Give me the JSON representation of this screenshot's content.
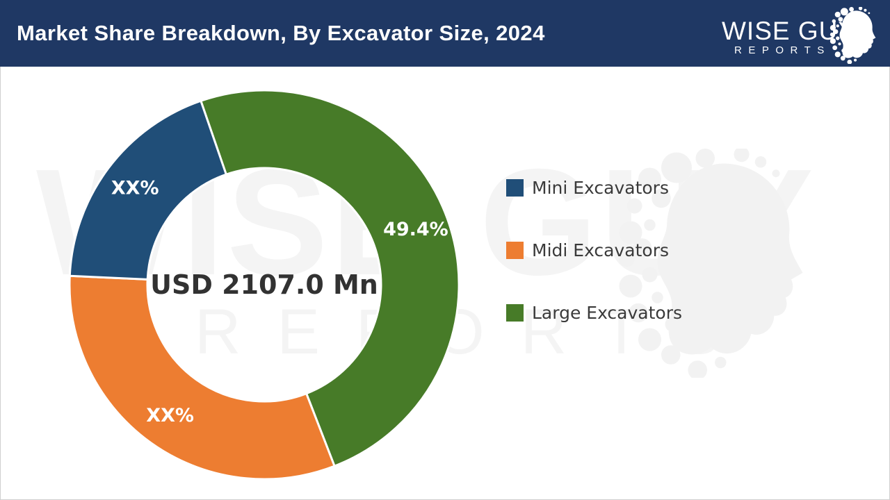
{
  "header": {
    "title": "Market Share Breakdown, By Excavator Size, 2024",
    "bg_color": "#1f3864",
    "logo": {
      "name": "WISE GUY",
      "sub": "REPORTS"
    }
  },
  "watermark": {
    "line1": "WISE GUY",
    "line2": "REPORTS"
  },
  "chart_data": {
    "type": "pie",
    "subtype": "donut",
    "title": "Market Share Breakdown, By Excavator Size, 2024",
    "center_label": "USD 2107.0 Mn",
    "rotation_deg": -19,
    "slices": [
      {
        "name": "Large Excavators",
        "label": "49.4%",
        "value_pct": 49.4,
        "color": "#477b28"
      },
      {
        "name": "Midi Excavators",
        "label": "XX%",
        "value_pct": 31.6,
        "color": "#ed7d31"
      },
      {
        "name": "Mini Excavators",
        "label": "XX%",
        "value_pct": 19.0,
        "color": "#204e78"
      }
    ],
    "legend": [
      {
        "label": "Mini Excavators",
        "color": "#204e78"
      },
      {
        "label": "Midi Excavators",
        "color": "#ed7d31"
      },
      {
        "label": "Large Excavators",
        "color": "#477b28"
      }
    ],
    "legend_position": "right"
  }
}
